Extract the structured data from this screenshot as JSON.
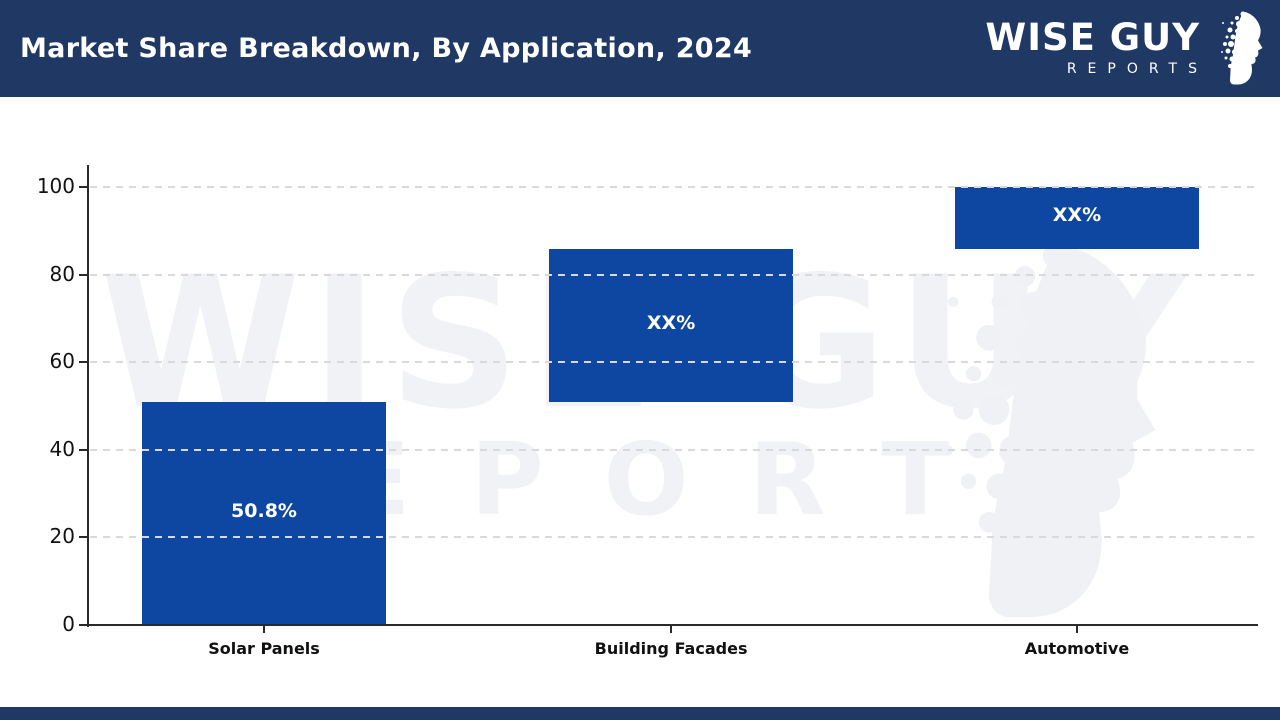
{
  "header": {
    "title": "Market Share Breakdown, By Application, 2024",
    "logo": {
      "line1": "WISE GUY",
      "line2": "REPORTS"
    }
  },
  "watermark": {
    "line1": "WISE GUY",
    "line2": "REPORTS"
  },
  "colors": {
    "header_bg": "#1f3864",
    "footer_bg": "#1f3864",
    "bar": "#0d47a1",
    "gridline": "#d9d9d9",
    "axis": "#2a2a2a",
    "tick_label": "#111111",
    "bar_label": "#ffffff",
    "watermark": "#f1f2f5"
  },
  "chart_data": {
    "type": "bar",
    "variant": "stacked_percentage_waterfall",
    "title": "Market Share Breakdown, By Application, 2024",
    "categories": [
      "Solar Panels",
      "Building Facades",
      "Automotive"
    ],
    "segments": [
      {
        "category": "Solar Panels",
        "from": 0,
        "to": 50.8,
        "value": 50.8,
        "label": "50.8%"
      },
      {
        "category": "Building Facades",
        "from": 50.8,
        "to": 85.8,
        "value": 35.0,
        "label": "XX%"
      },
      {
        "category": "Automotive",
        "from": 85.8,
        "to": 100,
        "value": 14.2,
        "label": "XX%"
      }
    ],
    "yticks": [
      0,
      20,
      40,
      60,
      80,
      100
    ],
    "ylim": [
      0,
      100
    ],
    "xlabel": "",
    "ylabel": "",
    "grid": "dashed-horizontal",
    "legend": "none",
    "bar_color": "#0d47a1"
  }
}
